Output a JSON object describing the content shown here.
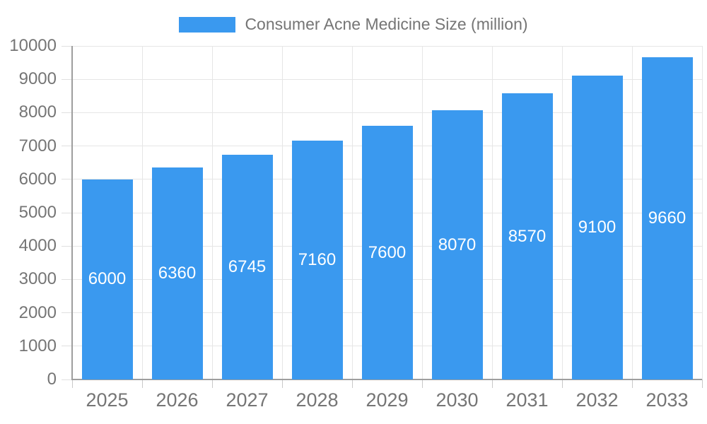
{
  "chart_data": {
    "type": "bar",
    "title": "Consumer Acne Medicine Size (million)",
    "legend": [
      "Consumer Acne Medicine Size (million)"
    ],
    "legend_position": "top-center",
    "categories": [
      "2025",
      "2026",
      "2027",
      "2028",
      "2029",
      "2030",
      "2031",
      "2032",
      "2033"
    ],
    "values": [
      6000,
      6360,
      6745,
      7160,
      7600,
      8070,
      8570,
      9100,
      9660
    ],
    "value_labels_position": "inside-center",
    "xlabel": "",
    "ylabel": "",
    "ylim": [
      0,
      10000
    ],
    "yticks": [
      0,
      1000,
      2000,
      3000,
      4000,
      5000,
      6000,
      7000,
      8000,
      9000,
      10000
    ],
    "grid": true
  },
  "colors": {
    "bar": "#3a99ef",
    "grid": "#e6e6e6",
    "axis_line": "#9e9e9e",
    "y_tick": "#e0e0e0",
    "x_tick": "#c9c9c9",
    "axis_text": "#757575",
    "value_label_text": "#ffffff",
    "background": "#ffffff"
  }
}
